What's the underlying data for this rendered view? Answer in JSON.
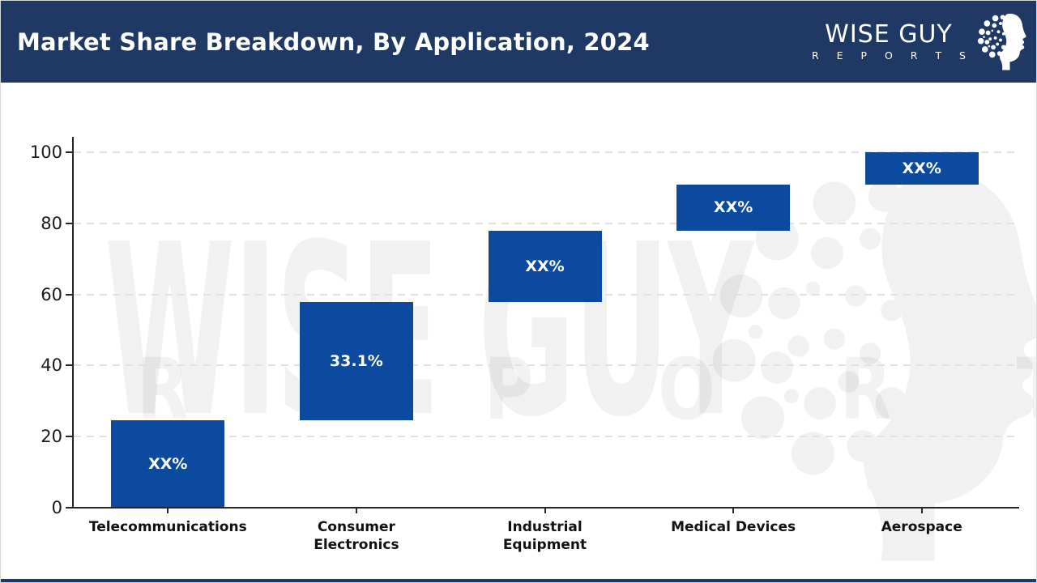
{
  "header": {
    "title": "Market Share Breakdown, By Application, 2024",
    "brand": {
      "line1": "WISE GUY",
      "line2": "R E P O R T S"
    }
  },
  "watermark": {
    "line1": "WISE GUY",
    "line2": "R E P O R T S"
  },
  "colors": {
    "header_bg": "#203864",
    "footer_bg": "#203864",
    "bar": "#0b4a9e",
    "axis": "#262626",
    "grid": "#e1e1e1",
    "bar_label": "#ffffff"
  },
  "chart_data": {
    "type": "bar",
    "subtype": "waterfall",
    "title": "Market Share Breakdown, By Application, 2024",
    "xlabel": "",
    "ylabel": "",
    "ylim": [
      0,
      100
    ],
    "yticks": [
      0,
      20,
      40,
      60,
      80,
      100
    ],
    "grid": true,
    "categories": [
      "Telecommunications",
      "Consumer\nElectronics",
      "Industrial\nEquipment",
      "Medical Devices",
      "Aerospace"
    ],
    "segments": [
      {
        "category": "Telecommunications",
        "start": 0,
        "end": 24.7,
        "value": 24.7,
        "label": "XX%"
      },
      {
        "category": "Consumer Electronics",
        "start": 24.7,
        "end": 57.8,
        "value": 33.1,
        "label": "33.1%"
      },
      {
        "category": "Industrial Equipment",
        "start": 57.8,
        "end": 77.9,
        "value": 20.1,
        "label": "XX%"
      },
      {
        "category": "Medical Devices",
        "start": 77.9,
        "end": 90.9,
        "value": 13.0,
        "label": "XX%"
      },
      {
        "category": "Aerospace",
        "start": 90.9,
        "end": 100,
        "value": 9.1,
        "label": "XX%"
      }
    ]
  }
}
